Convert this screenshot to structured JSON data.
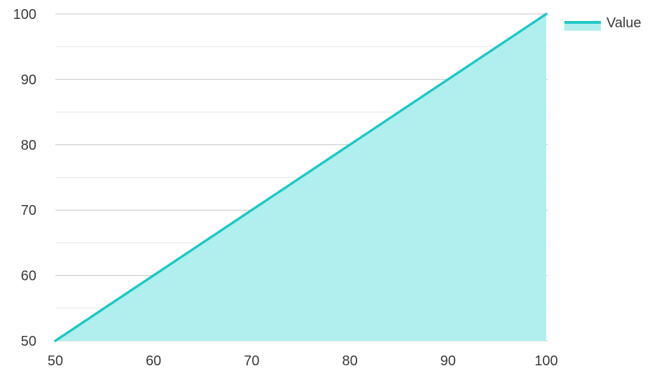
{
  "chart_data": {
    "type": "area",
    "x": [
      50,
      100
    ],
    "series": [
      {
        "name": "Value",
        "values": [
          50,
          100
        ]
      }
    ],
    "xlim": [
      50,
      100
    ],
    "ylim": [
      50,
      100
    ],
    "x_ticks": [
      50,
      60,
      70,
      80,
      90,
      100
    ],
    "y_ticks": [
      50,
      60,
      70,
      80,
      90,
      100
    ],
    "y_minor_ticks": [
      55,
      65,
      75,
      85,
      95
    ],
    "grid": true,
    "legend_position": "top-right",
    "colors": {
      "line": "#1ec8c8",
      "fill": "#b0efed",
      "major_grid": "#c4c4c4",
      "minor_grid": "#e6e6e6",
      "text": "#3a3a3a"
    }
  },
  "legend": {
    "label": "Value"
  }
}
